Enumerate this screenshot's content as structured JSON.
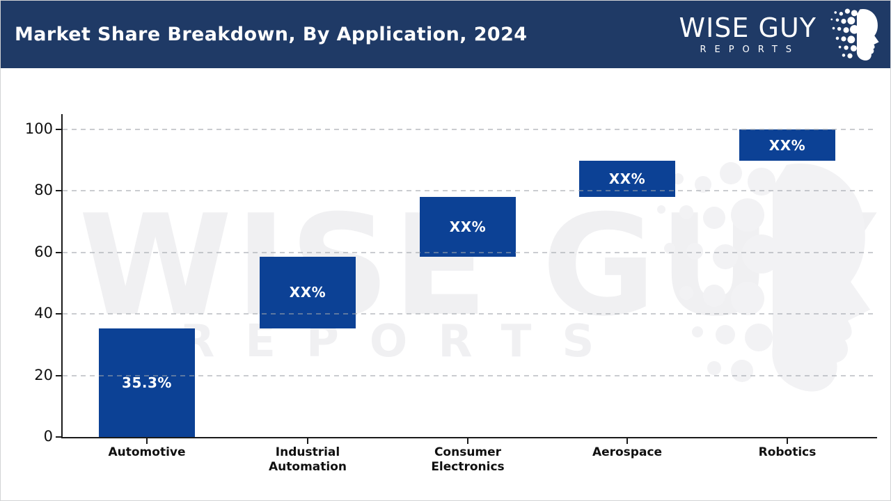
{
  "header": {
    "title": "Market Share Breakdown, By Application, 2024",
    "logo": {
      "line1": "WISE GUY",
      "line2": "REPORTS"
    }
  },
  "watermark": {
    "line1": "WISE GUY",
    "line2": "REPORTS"
  },
  "colors": {
    "header_bg": "#1f3a66",
    "bar": "#0c4195",
    "watermark": "#f0f0f2",
    "axis": "#1a1a1a"
  },
  "chart_data": {
    "type": "bar",
    "subtype": "waterfall",
    "title": "Market Share Breakdown, By Application, 2024",
    "categories": [
      "Automotive",
      "Industrial\nAutomation",
      "Consumer\nElectronics",
      "Aerospace",
      "Robotics"
    ],
    "segments": [
      {
        "category": "Automotive",
        "start": 0,
        "end": 35.3,
        "label": "35.3%"
      },
      {
        "category": "Industrial Automation",
        "start": 35.3,
        "end": 58.7,
        "label": "XX%"
      },
      {
        "category": "Consumer Electronics",
        "start": 58.7,
        "end": 78.1,
        "label": "XX%"
      },
      {
        "category": "Aerospace",
        "start": 78.1,
        "end": 89.8,
        "label": "XX%"
      },
      {
        "category": "Robotics",
        "start": 89.8,
        "end": 100,
        "label": "XX%"
      }
    ],
    "yticks": [
      0,
      20,
      40,
      60,
      80,
      100
    ],
    "ylim": [
      0,
      105
    ],
    "xlabel": "",
    "ylabel": "",
    "grid": true,
    "grid_style": "dashed",
    "legend": "none",
    "bar_color": "#0c4195",
    "bar_label_color": "#ffffff"
  }
}
